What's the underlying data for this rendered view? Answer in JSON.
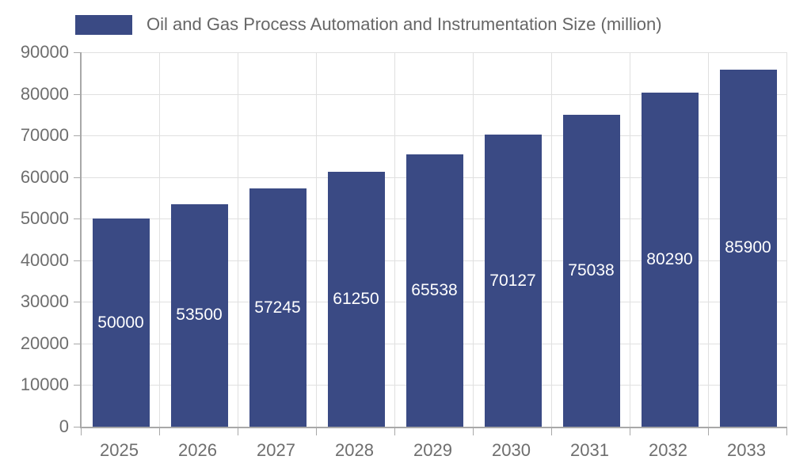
{
  "legend": {
    "label": "Oil and Gas Process Automation and Instrumentation Size (million)"
  },
  "chart_data": {
    "type": "bar",
    "title": "Oil and Gas Process Automation and Instrumentation Size (million)",
    "categories": [
      "2025",
      "2026",
      "2027",
      "2028",
      "2029",
      "2030",
      "2031",
      "2032",
      "2033"
    ],
    "values": [
      50000,
      53500,
      57245,
      61250,
      65538,
      70127,
      75038,
      80290,
      85900
    ],
    "xlabel": "",
    "ylabel": "",
    "ylim": [
      0,
      90000
    ],
    "yticks": [
      0,
      10000,
      20000,
      30000,
      40000,
      50000,
      60000,
      70000,
      80000,
      90000
    ],
    "grid": true,
    "legend_position": "top-left",
    "value_labels": "inside-center"
  },
  "colors": {
    "bar": "#3A4A84",
    "bar_label_text": "#ffffff",
    "axis_line": "#a8a8a8",
    "gridline": "#e0e0e0",
    "tick_text": "#6e6e6e",
    "legend_text": "#666666"
  }
}
